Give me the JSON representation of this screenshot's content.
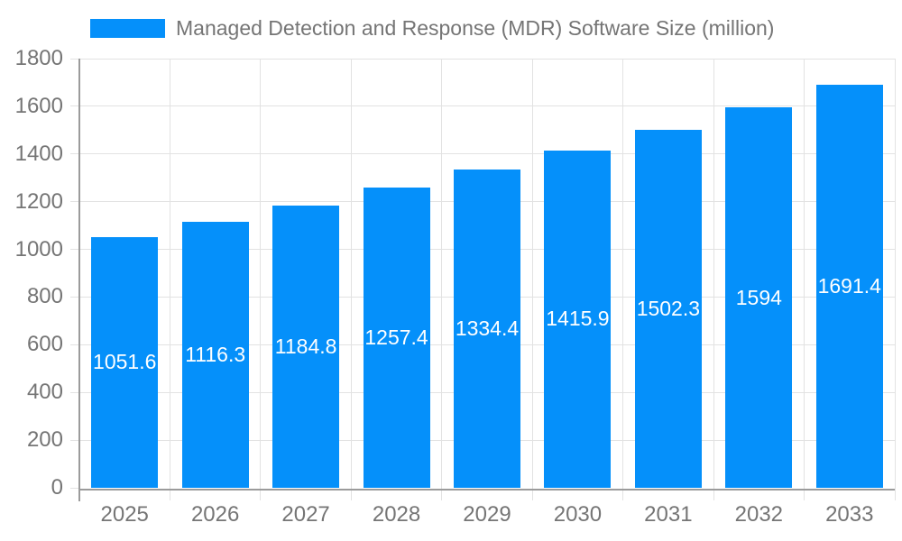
{
  "legend": {
    "swatch_color": "#0590fa"
  },
  "colors": {
    "bar": "#0590fa",
    "bar_value_text": "#ffffff",
    "axis_text": "#757575",
    "gridline": "#e2e2e2",
    "axis_line": "#9b9b9b",
    "background": "#ffffff"
  },
  "chart_data": {
    "type": "bar",
    "title": "Managed Detection and Response (MDR) Software Size (million)",
    "categories": [
      "2025",
      "2026",
      "2027",
      "2028",
      "2029",
      "2030",
      "2031",
      "2032",
      "2033"
    ],
    "values": [
      1051.6,
      1116.3,
      1184.8,
      1257.4,
      1334.4,
      1415.9,
      1502.3,
      1594,
      1691.4
    ],
    "value_labels": [
      "1051.6",
      "1116.3",
      "1184.8",
      "1257.4",
      "1334.4",
      "1415.9",
      "1502.3",
      "1594",
      "1691.4"
    ],
    "xlabel": "",
    "ylabel": "",
    "ylim": [
      0,
      1800
    ],
    "yticks": [
      0,
      200,
      400,
      600,
      800,
      1000,
      1200,
      1400,
      1600,
      1800
    ],
    "grid": true,
    "legend_position": "top"
  }
}
